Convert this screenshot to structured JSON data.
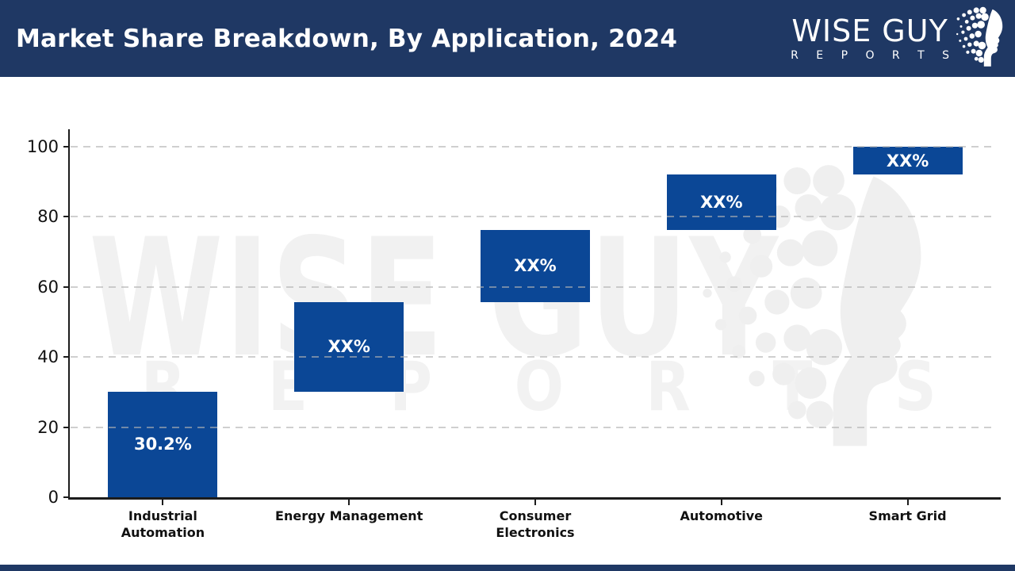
{
  "header": {
    "title": "Market Share Breakdown, By Application, 2024",
    "brand_line1": "WISE GUY",
    "brand_line2": "R E P O R T S"
  },
  "watermark": {
    "line1": "WISE GUY",
    "line2": "R E P O R T S"
  },
  "colors": {
    "header_bg": "#1F3864",
    "footer_bg": "#1F3864",
    "bar_fill": "#0B4796",
    "bar_label_text": "#FFFFFF",
    "axis": "#1C1C1C",
    "gridline": "#B2B2B2",
    "watermark": "#F1F1F1"
  },
  "chart_data": {
    "type": "bar",
    "subtype": "floating-waterfall",
    "title": "Market Share Breakdown, By Application, 2024",
    "categories": [
      "Industrial Automation",
      "Energy Management",
      "Consumer Electronics",
      "Automotive",
      "Smart Grid"
    ],
    "category_label_lines": [
      [
        "Industrial",
        "Automation"
      ],
      [
        "Energy Management"
      ],
      [
        "Consumer",
        "Electronics"
      ],
      [
        "Automotive"
      ],
      [
        "Smart Grid"
      ]
    ],
    "segments": [
      {
        "category": "Industrial Automation",
        "start": 0,
        "end": 30.2,
        "label": "30.2%"
      },
      {
        "category": "Energy Management",
        "start": 30.2,
        "end": 55.7,
        "label": "XX%"
      },
      {
        "category": "Consumer Electronics",
        "start": 55.7,
        "end": 76.3,
        "label": "XX%"
      },
      {
        "category": "Automotive",
        "start": 76.3,
        "end": 92,
        "label": "XX%"
      },
      {
        "category": "Smart Grid",
        "start": 92,
        "end": 100,
        "label": "XX%"
      }
    ],
    "yticks": [
      0,
      20,
      40,
      60,
      80,
      100
    ],
    "ylim": [
      0,
      105
    ],
    "xlabel": "",
    "ylabel": "",
    "grid": "horizontal-dashed",
    "legend": "none"
  }
}
